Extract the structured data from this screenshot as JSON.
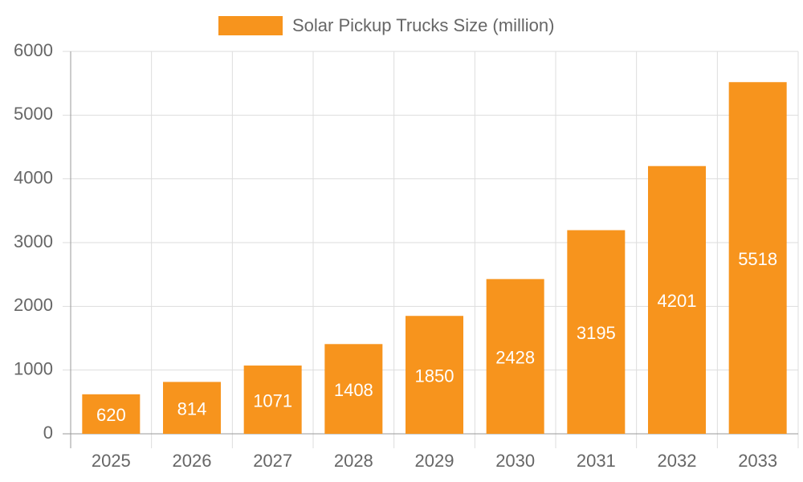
{
  "chart_data": {
    "type": "bar",
    "categories": [
      "2025",
      "2026",
      "2027",
      "2028",
      "2029",
      "2030",
      "2031",
      "2032",
      "2033"
    ],
    "series": [
      {
        "name": "Solar Pickup Trucks Size (million)",
        "color": "#f7941d",
        "values": [
          620,
          814,
          1071,
          1408,
          1850,
          2428,
          3195,
          4201,
          5518
        ]
      }
    ],
    "ylim": [
      0,
      6000
    ],
    "yticks": [
      0,
      1000,
      2000,
      3000,
      4000,
      5000,
      6000
    ],
    "grid": true,
    "legend": "top"
  }
}
